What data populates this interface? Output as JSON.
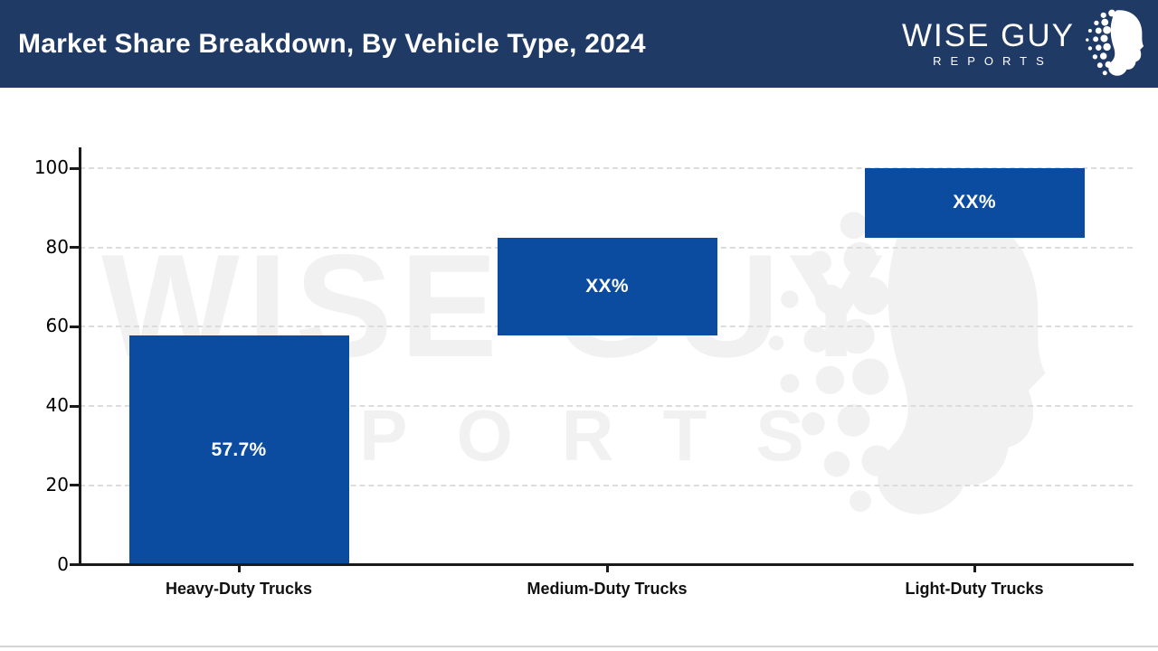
{
  "header": {
    "title": "Market Share Breakdown, By Vehicle Type, 2024",
    "logo": {
      "line1": "WISE GUY",
      "line2": "REPORTS"
    }
  },
  "watermark": {
    "line1": "WISE GUY",
    "line2": "REPORTS"
  },
  "chart_data": {
    "type": "bar",
    "subtype": "floating-segment-waterfall",
    "title": "Market Share Breakdown, By Vehicle Type, 2024",
    "categories": [
      "Heavy-Duty Trucks",
      "Medium-Duty Trucks",
      "Light-Duty Trucks"
    ],
    "bars": [
      {
        "category": "Heavy-Duty Trucks",
        "start": 0,
        "end": 57.7,
        "label": "57.7%"
      },
      {
        "category": "Medium-Duty Trucks",
        "start": 57.7,
        "end": 82.5,
        "label": "XX%"
      },
      {
        "category": "Light-Duty Trucks",
        "start": 82.5,
        "end": 100,
        "label": "XX%"
      }
    ],
    "xlabel": "",
    "ylabel": "",
    "ylim": [
      0,
      100
    ],
    "yticks": [
      0,
      20,
      40,
      60,
      80,
      100
    ],
    "grid": "horizontal-dashed",
    "legend_position": "none"
  },
  "colors": {
    "header_bg": "#203a66",
    "bar_fill": "#0b4ba0",
    "bar_label": "#ffffff",
    "grid": "#dcdcdc",
    "axis": "#1a1a1a",
    "watermark": "#f1f1f1"
  }
}
